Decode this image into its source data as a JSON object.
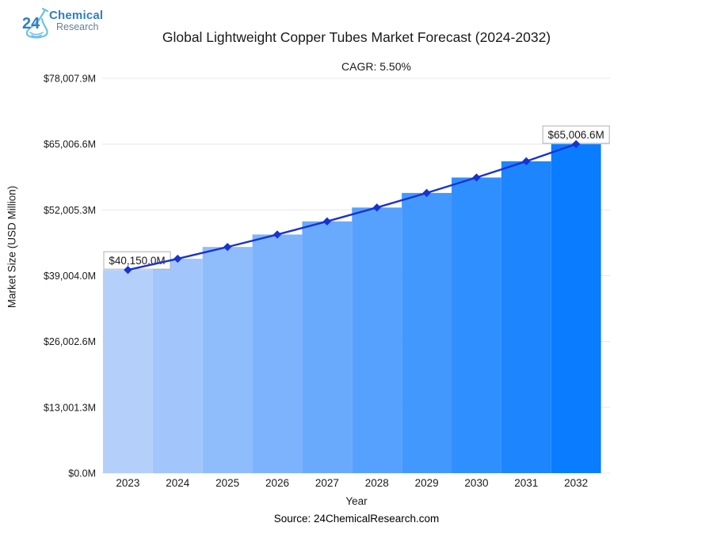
{
  "logo": {
    "number": "24",
    "line1": "Chemical",
    "line2": "Research"
  },
  "footer": {
    "source": "Source: 24ChemicalResearch.com"
  },
  "chart_data": {
    "type": "bar",
    "overlay": "line",
    "title": "Global Lightweight Copper Tubes Market Forecast (2024-2032)",
    "subtitle": "CAGR: 5.50%",
    "xlabel": "Year",
    "ylabel": "Market Size (USD Million)",
    "categories": [
      "2023",
      "2024",
      "2025",
      "2026",
      "2027",
      "2028",
      "2029",
      "2030",
      "2031",
      "2032"
    ],
    "values": [
      40150.0,
      42358.3,
      44688.0,
      47145.8,
      49738.8,
      52474.4,
      55360.5,
      58405.4,
      61617.7,
      65006.6
    ],
    "ylim": [
      0,
      78007.9
    ],
    "yticks": [
      {
        "value": 0,
        "label": "$0.0M"
      },
      {
        "value": 13001.3,
        "label": "$13,001.3M"
      },
      {
        "value": 26002.6,
        "label": "$26,002.6M"
      },
      {
        "value": 39004.0,
        "label": "$39,004.0M"
      },
      {
        "value": 52005.3,
        "label": "$52,005.3M"
      },
      {
        "value": 65006.6,
        "label": "$65,006.6M"
      },
      {
        "value": 78007.9,
        "label": "$78,007.9M"
      }
    ],
    "grid": true,
    "legend_position": "none",
    "annotations": [
      {
        "index": 0,
        "label": "$40,150.0M",
        "placement": "left-of-start"
      },
      {
        "index": 9,
        "label": "$65,006.6M",
        "placement": "above-end"
      }
    ],
    "colors": {
      "bar_colors": [
        "#b5cffb",
        "#a2c6fb",
        "#8fbdfc",
        "#7cb3fc",
        "#69aafd",
        "#56a1fd",
        "#4398fd",
        "#308ffe",
        "#1d85fe",
        "#0a7cff"
      ],
      "line_color": "#1733d1",
      "grid_color": "#e7e7e7",
      "annotation_border": "#b0b0b0",
      "text_color": "#1a1a1a",
      "logo_blue": "#2e7fc1",
      "logo_flask": "#6fc0e8",
      "logo_gray": "#64808f"
    }
  }
}
